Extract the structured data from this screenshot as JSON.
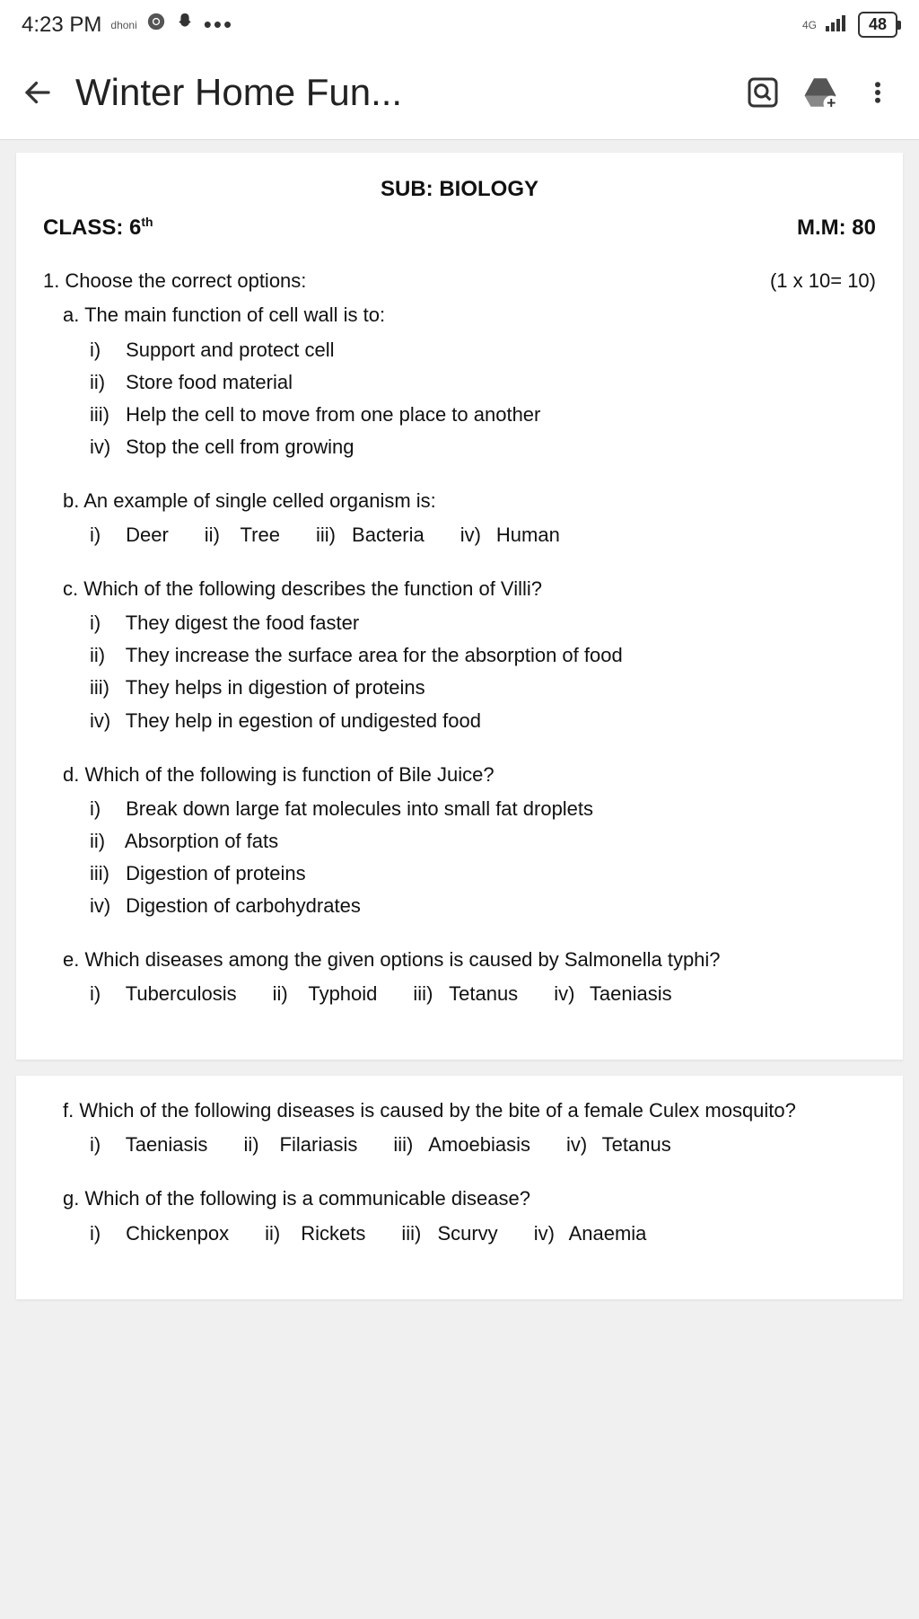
{
  "status": {
    "time": "4:23 PM",
    "carrier_small": "dhoni",
    "network_label": "4G",
    "battery": "48"
  },
  "appbar": {
    "title": "Winter Home Fun..."
  },
  "doc": {
    "subject": "SUB: BIOLOGY",
    "class_label": "CLASS: 6",
    "class_sup": "th",
    "marks": "M.M: 80",
    "section_num": "1.",
    "section_title": "Choose the correct options:",
    "section_marks": "(1 x 10= 10)",
    "questions": [
      {
        "letter": "a.",
        "text": "The main function of cell wall is to:",
        "layout": "stack",
        "options": [
          {
            "n": "i)",
            "t": "Support and protect cell"
          },
          {
            "n": "ii)",
            "t": "Store food material"
          },
          {
            "n": "iii)",
            "t": "Help the cell to move from one place to another"
          },
          {
            "n": "iv)",
            "t": "Stop the cell from growing"
          }
        ]
      },
      {
        "letter": "b.",
        "text": "An example of single celled organism is:",
        "layout": "inline",
        "options": [
          {
            "n": "i)",
            "t": "Deer"
          },
          {
            "n": "ii)",
            "t": "Tree"
          },
          {
            "n": "iii)",
            "t": "Bacteria"
          },
          {
            "n": "iv)",
            "t": "Human"
          }
        ]
      },
      {
        "letter": "c.",
        "text": "Which of the following describes the function of Villi?",
        "layout": "stack",
        "options": [
          {
            "n": "i)",
            "t": "They digest the food faster"
          },
          {
            "n": "ii)",
            "t": "They increase the surface area for the absorption of food"
          },
          {
            "n": "iii)",
            "t": "They helps in digestion of proteins"
          },
          {
            "n": "iv)",
            "t": "They help in egestion of undigested food"
          }
        ]
      },
      {
        "letter": "d.",
        "text": "Which of the following is function of Bile Juice?",
        "layout": "stack",
        "options": [
          {
            "n": "i)",
            "t": "Break down large fat molecules into small fat droplets"
          },
          {
            "n": "ii)",
            "t": "Absorption of fats"
          },
          {
            "n": "iii)",
            "t": "Digestion of proteins"
          },
          {
            "n": "iv)",
            "t": "Digestion of carbohydrates"
          }
        ]
      },
      {
        "letter": "e.",
        "text": "Which diseases among the given options is caused by Salmonella typhi?",
        "layout": "inline",
        "options": [
          {
            "n": "i)",
            "t": "Tuberculosis"
          },
          {
            "n": "ii)",
            "t": "Typhoid"
          },
          {
            "n": "iii)",
            "t": "Tetanus"
          },
          {
            "n": "iv)",
            "t": "Taeniasis"
          }
        ]
      }
    ],
    "questions_page2": [
      {
        "letter": "f.",
        "text": "Which of the following diseases is caused by the bite of a female Culex mosquito?",
        "layout": "inline",
        "options": [
          {
            "n": "i)",
            "t": "Taeniasis"
          },
          {
            "n": "ii)",
            "t": "Filariasis"
          },
          {
            "n": "iii)",
            "t": "Amoebiasis"
          },
          {
            "n": "iv)",
            "t": "Tetanus"
          }
        ]
      },
      {
        "letter": "g.",
        "text": "Which of the following is a communicable disease?",
        "layout": "inline",
        "options": [
          {
            "n": "i)",
            "t": "Chickenpox"
          },
          {
            "n": "ii)",
            "t": "Rickets"
          },
          {
            "n": "iii)",
            "t": "Scurvy"
          },
          {
            "n": "iv)",
            "t": "Anaemia"
          }
        ]
      }
    ]
  }
}
